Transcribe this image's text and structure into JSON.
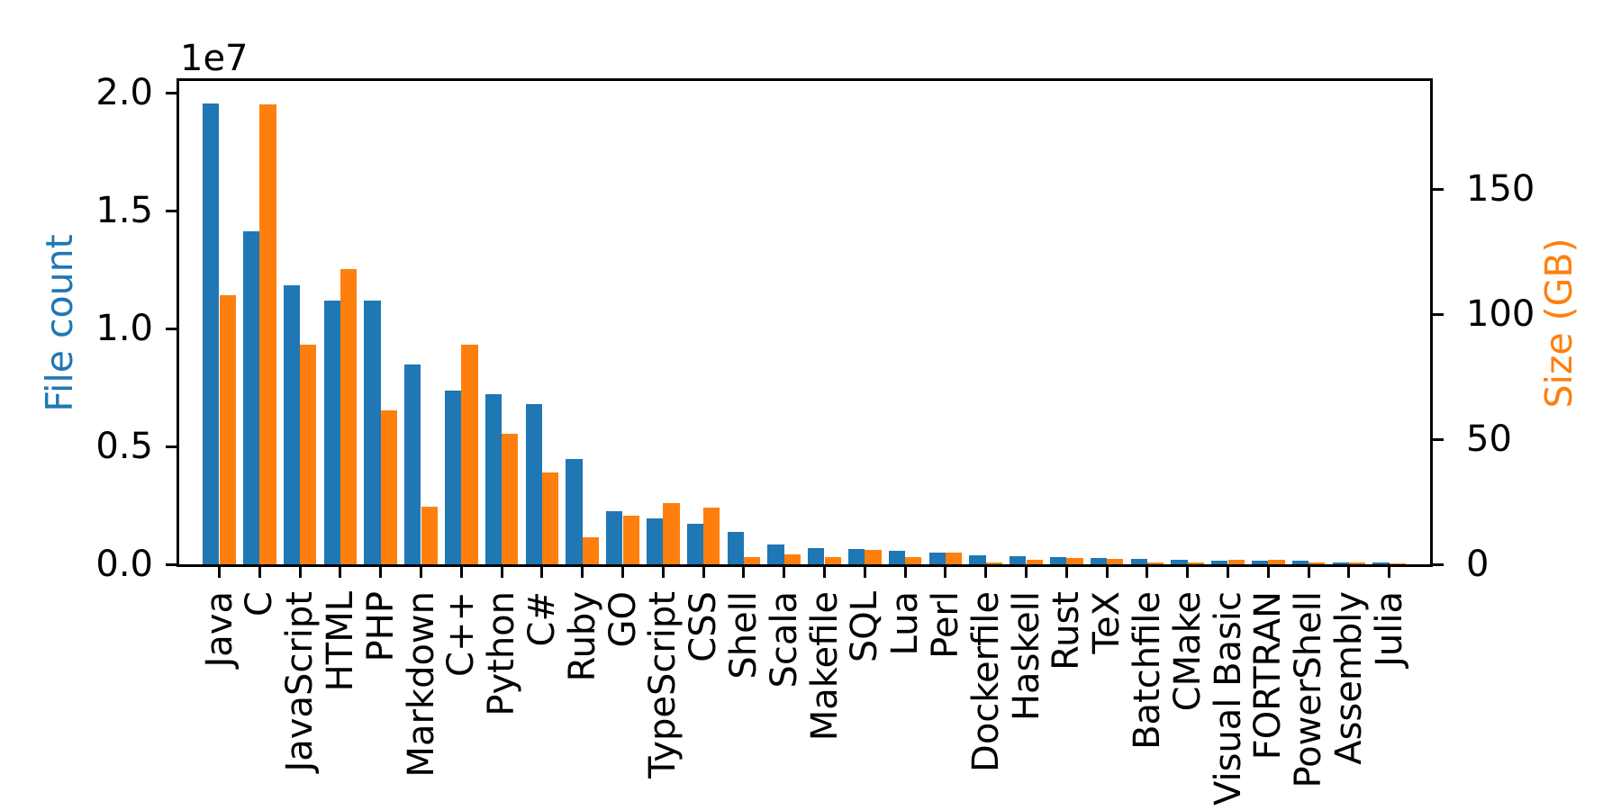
{
  "figure": {
    "background": "#ffffff",
    "offset_text": "1e7",
    "y_axis_left": {
      "label": "File count",
      "color": "#1f77b4",
      "tick_labels": [
        "0.0",
        "0.5",
        "1.0",
        "1.5",
        "2.0"
      ],
      "tick_values": [
        0,
        5000000,
        10000000,
        15000000,
        20000000
      ]
    },
    "y_axis_right": {
      "label": "Size (GB)",
      "color": "#ff7f0e",
      "tick_labels": [
        "0",
        "50",
        "100",
        "150"
      ],
      "tick_values": [
        0,
        50,
        100,
        150
      ]
    }
  },
  "chart_data": {
    "type": "bar",
    "title": "",
    "xlabel": "",
    "ylabel_left": "File count",
    "ylabel_right": "Size (GB)",
    "left_axis_offset_text": "1e7",
    "grid": false,
    "legend_position": "none",
    "x_tick_rotation": 90,
    "ylim_left": [
      0,
      20500000
    ],
    "ylim_right": [
      0,
      193.2
    ],
    "categories": [
      "Java",
      "C",
      "JavaScript",
      "HTML",
      "PHP",
      "Markdown",
      "C++",
      "Python",
      "C#",
      "Ruby",
      "GO",
      "TypeScript",
      "CSS",
      "Shell",
      "Scala",
      "Makefile",
      "SQL",
      "Lua",
      "Perl",
      "Dockerfile",
      "Haskell",
      "Rust",
      "TeX",
      "Batchfile",
      "CMake",
      "Visual Basic",
      "FORTRAN",
      "PowerShell",
      "Assembly",
      "Julia"
    ],
    "series": [
      {
        "name": "File count",
        "axis": "left",
        "color": "#1f77b4",
        "values": [
          19548190,
          14143113,
          11839883,
          11178557,
          11177610,
          8464626,
          7380520,
          7226626,
          6811652,
          4473331,
          2265436,
          1940406,
          1734406,
          1385648,
          835755,
          679430,
          656671,
          578554,
          497949,
          366505,
          340623,
          322431,
          251015,
          236945,
          175282,
          155652,
          142038,
          136846,
          82905,
          58317
        ]
      },
      {
        "name": "Size (GB)",
        "axis": "right",
        "color": "#ff7f0e",
        "values": [
          107.7,
          183.83,
          87.82,
          118.12,
          61.41,
          23.09,
          87.73,
          52.03,
          36.83,
          10.95,
          19.28,
          24.59,
          22.67,
          3.01,
          3.87,
          2.92,
          5.67,
          2.81,
          4.7,
          0.71,
          1.85,
          2.68,
          2.15,
          0.7,
          0.54,
          1.91,
          1.62,
          0.69,
          0.78,
          0.29
        ]
      }
    ]
  }
}
